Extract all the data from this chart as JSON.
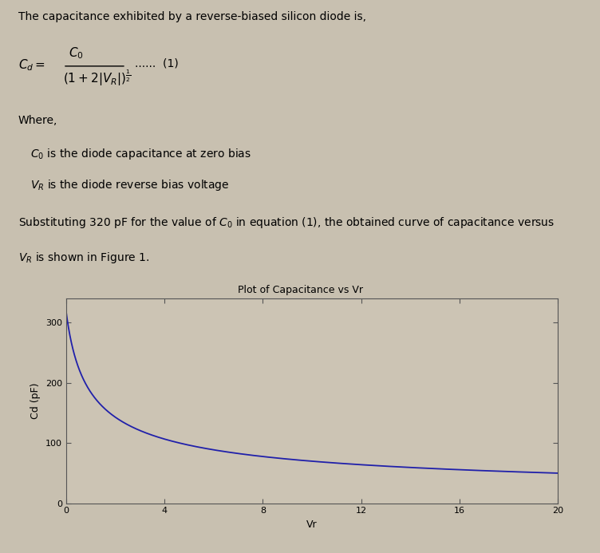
{
  "title_text": "The capacitance exhibited by a reverse-biased silicon diode is,",
  "where_text": "Where,",
  "desc1": "$C_0$ is the diode capacitance at zero bias",
  "desc2": "$V_R$ is the diode reverse bias voltage",
  "sub_line1": "Substituting 320 pF for the value of $C_0$ in equation (1), the obtained curve of capacitance versus",
  "sub_line2": "$V_R$ is shown in Figure 1.",
  "plot_title": "Plot of Capacitance vs Vr",
  "xlabel": "Vr",
  "ylabel": "Cd (pF)",
  "C0": 320,
  "vr_start": 0,
  "vr_end": 20,
  "ylim": [
    0,
    340
  ],
  "xlim": [
    0,
    20
  ],
  "yticks": [
    0,
    100,
    200,
    300
  ],
  "xticks": [
    0,
    4,
    8,
    12,
    16,
    20
  ],
  "line_color": "#2020aa",
  "figure_bg": "#c8c0b0",
  "plot_bg_color": "#ccc4b4",
  "text_color": "#000000",
  "title_fontsize": 10,
  "body_fontsize": 10,
  "plot_title_fontsize": 9,
  "axis_label_fontsize": 9,
  "tick_fontsize": 8
}
